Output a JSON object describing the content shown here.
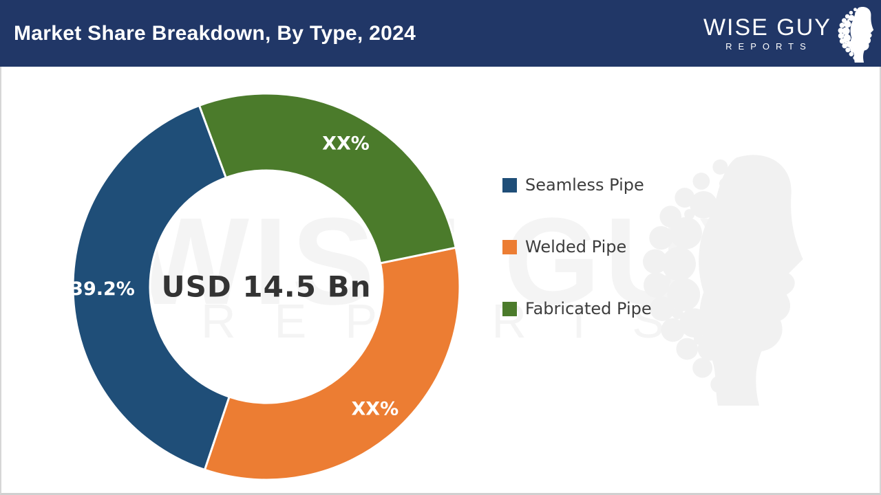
{
  "header": {
    "title": "Market Share Breakdown, By Type, 2024",
    "logo": {
      "line1": "WISE GUY",
      "line2": "REPORTS"
    }
  },
  "watermark": {
    "line1": "WISE GUY",
    "line2": "REPORTS"
  },
  "colors": {
    "header_bg": "#213767",
    "seamless_blue": "#1F4E78",
    "welded_orange": "#EC7D33",
    "fabricated_green": "#4B7B2B",
    "center_text": "#333333",
    "legend_text": "#3D3D3D",
    "watermark_gray": "#F4F4F4"
  },
  "chart_data": {
    "type": "pie",
    "subtype": "donut",
    "title": "Market Share Breakdown, By Type, 2024",
    "center_label": "USD 14.5 Bn",
    "start_angle_deg": 110.3,
    "direction": "counterclockwise",
    "legend_position": "right",
    "segments": [
      {
        "name": "Seamless Pipe",
        "label": "39.2%",
        "pct": 39.2,
        "color": "#1F4E78"
      },
      {
        "name": "Welded Pipe",
        "label": "XX%",
        "pct": 33.4,
        "color": "#EC7D33"
      },
      {
        "name": "Fabricated Pipe",
        "label": "XX%",
        "pct": 27.4,
        "color": "#4B7B2B"
      }
    ]
  }
}
